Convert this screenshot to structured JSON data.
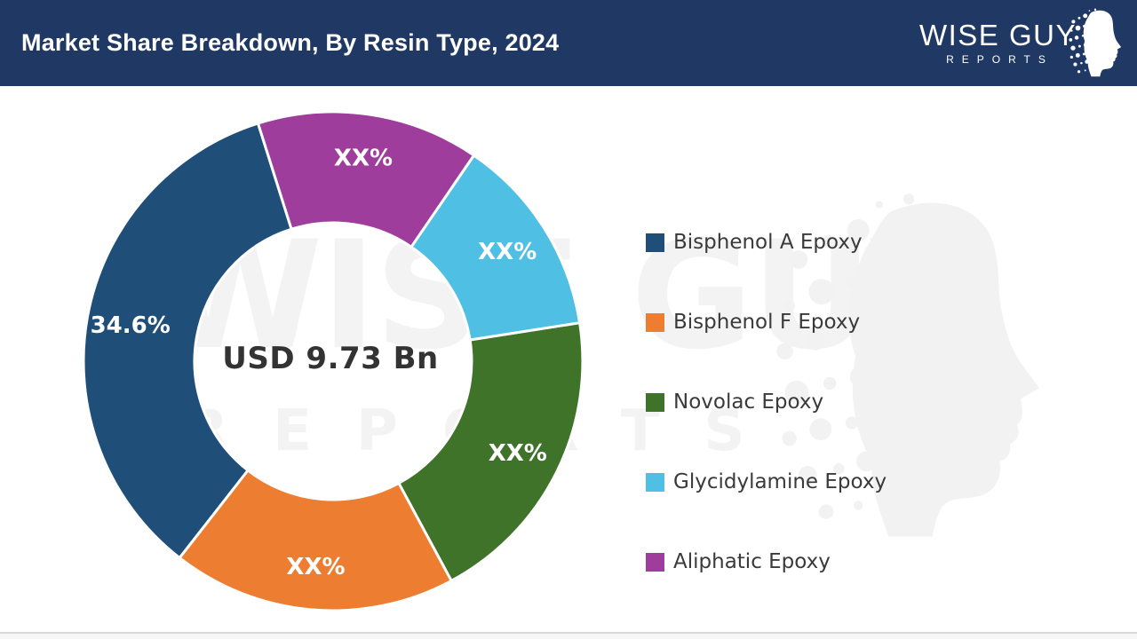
{
  "header": {
    "title": "Market Share Breakdown, By Resin Type, 2024",
    "bg_color": "#1f3864",
    "logo": {
      "name": "WISE GUY REPORTS",
      "line1": "WISE GUY",
      "line2": "REPORTS"
    }
  },
  "chart_data": {
    "type": "pie",
    "subtype": "donut",
    "title": "Market Share Breakdown, By Resin Type, 2024",
    "center_label": "USD 9.73 Bn",
    "legend_position": "right",
    "start_angle_deg_clockwise_from_top": 342.5,
    "direction": "counterclockwise",
    "segments": [
      {
        "name": "Bisphenol A Epoxy",
        "label": "34.6%",
        "value_pct_est": 34.6,
        "color": "#1f4e79"
      },
      {
        "name": "Bisphenol F Epoxy",
        "label": "XX%",
        "value_pct_est": 18.4,
        "color": "#ed7d31"
      },
      {
        "name": "Novolac Epoxy",
        "label": "XX%",
        "value_pct_est": 19.6,
        "color": "#40732a"
      },
      {
        "name": "Glycidylamine Epoxy",
        "label": "XX%",
        "value_pct_est": 13.0,
        "color": "#4fbfe4"
      },
      {
        "name": "Aliphatic Epoxy",
        "label": "XX%",
        "value_pct_est": 14.4,
        "color": "#9e3d9b"
      }
    ]
  },
  "watermark": {
    "line1": "WISE GUY",
    "line2": "REPORTS"
  }
}
